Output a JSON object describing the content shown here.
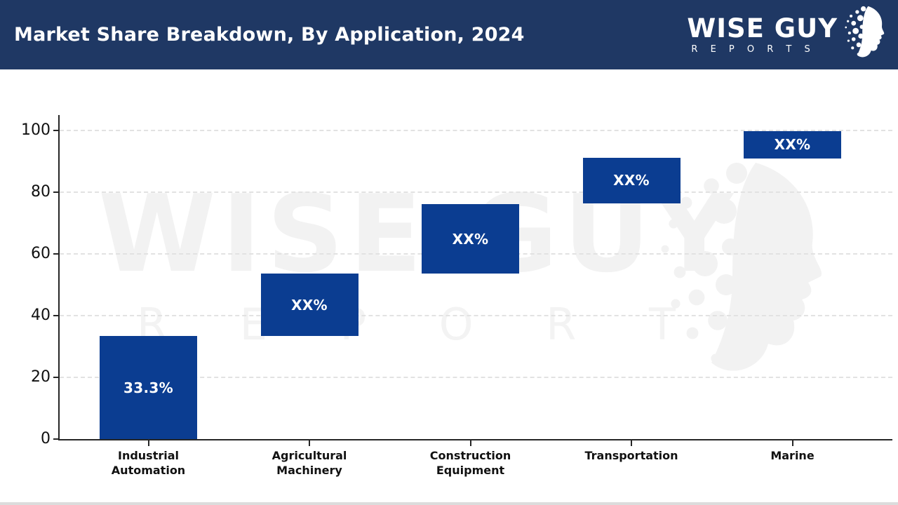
{
  "header": {
    "title": "Market Share Breakdown, By Application, 2024",
    "logo": {
      "primary": "WISE GUY",
      "secondary": "R E P O R T S",
      "face_icon": "dotted-face-profile-icon"
    }
  },
  "watermark": {
    "primary": "WISE GUY",
    "secondary": "R E P O R T S",
    "face_icon": "dotted-face-profile-icon"
  },
  "colors": {
    "header_bg": "#1f3864",
    "bar": "#0b3d91",
    "bar_label": "#ffffff",
    "axis": "#262626",
    "gridline": "#e2e2e2",
    "watermark": "#f2f2f2",
    "footer_strip": "#dcdcdc"
  },
  "chart_data": {
    "type": "bar",
    "variant": "floating-waterfall",
    "title": "Market Share Breakdown, By Application, 2024",
    "xlabel": "",
    "ylabel": "",
    "categories": [
      "Industrial Automation",
      "Agricultural Machinery",
      "Construction Equipment",
      "Transportation",
      "Marine"
    ],
    "segments": [
      {
        "category": "Industrial Automation",
        "lines": [
          "Industrial",
          "Automation"
        ],
        "start": 0,
        "end": 33.3,
        "label": "33.3%"
      },
      {
        "category": "Agricultural Machinery",
        "lines": [
          "Agricultural",
          "Machinery"
        ],
        "start": 33.3,
        "end": 53.6,
        "label": "XX%"
      },
      {
        "category": "Construction Equipment",
        "lines": [
          "Construction",
          "Equipment"
        ],
        "start": 53.6,
        "end": 76.1,
        "label": "XX%"
      },
      {
        "category": "Transportation",
        "lines": [
          "Transportation"
        ],
        "start": 76.4,
        "end": 91.1,
        "label": "XX%"
      },
      {
        "category": "Marine",
        "lines": [
          "Marine"
        ],
        "start": 91.0,
        "end": 99.8,
        "label": "XX%"
      }
    ],
    "yticks": [
      0,
      20,
      40,
      60,
      80,
      100
    ],
    "ylim": [
      0,
      105
    ],
    "grid": "horizontal-dashed",
    "legend": "none"
  }
}
